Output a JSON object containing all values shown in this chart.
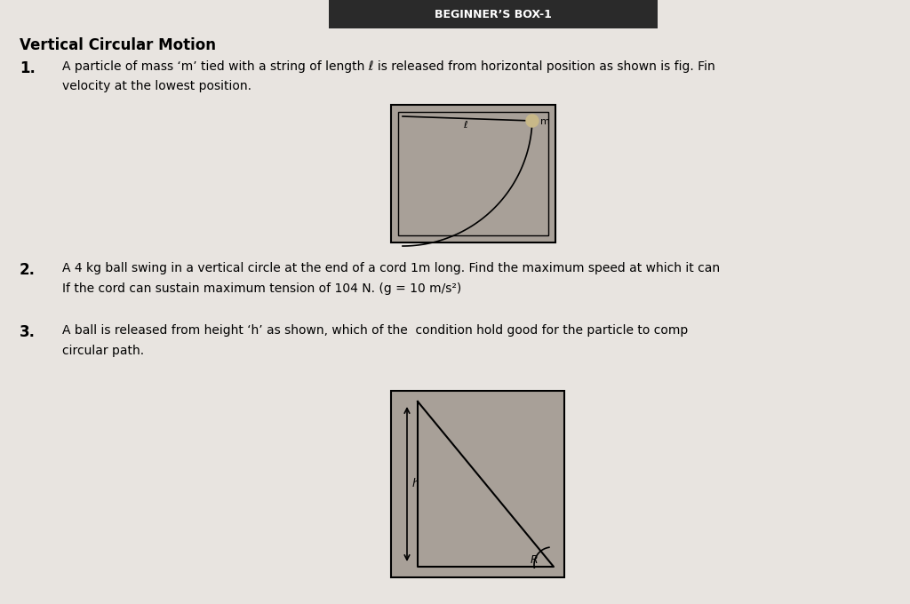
{
  "title": "Vertical Circular Motion",
  "page_bg": "#e8e4e0",
  "title_fontsize": 12,
  "body_fontsize": 10,
  "number_fontsize": 12,
  "q1_number": "1.",
  "q1_text_line1": "A particle of mass ‘m’ tied with a string of length ℓ is released from horizontal position as shown is fig. Fin",
  "q1_text_line2": "velocity at the lowest position.",
  "q2_number": "2.",
  "q2_text_line1": "A 4 kg ball swing in a vertical circle at the end of a cord 1m long. Find the maximum speed at which it can",
  "q2_text_line2": "If the cord can sustain maximum tension of 104 N. (g = 10 m/s²)",
  "q3_number": "3.",
  "q3_text_line1": "A ball is released from height ‘h’ as shown, which of the  condition hold good for the particle to comp",
  "q3_text_line2": "circular path.",
  "header_text": "BEGINNER’S BOX-1",
  "fig1_box_color": "#a8a098",
  "fig2_box_color": "#a8a098"
}
